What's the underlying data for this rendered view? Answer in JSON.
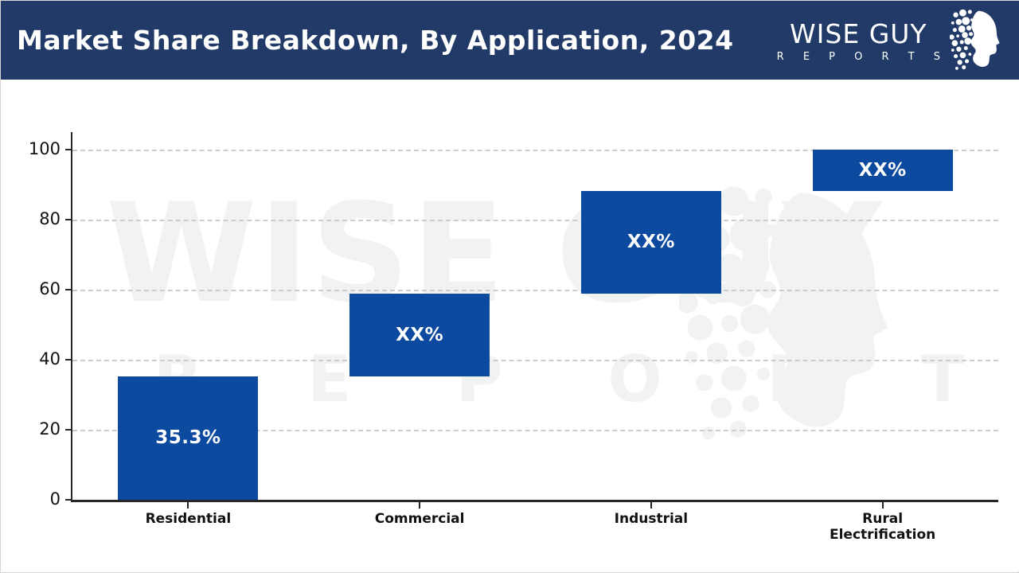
{
  "header": {
    "title": "Market Share Breakdown, By Application, 2024",
    "logo": {
      "line1": "WISE GUY",
      "line2": "R E P O R T S"
    }
  },
  "watermark": {
    "line1": "WISE GUY",
    "line2": "R E P O R T S"
  },
  "colors": {
    "header_bg": "#213a67",
    "bar_blue": "#0b4a9e",
    "bar_label": "#ffffff",
    "grid": "#cdcdcd",
    "axis": "#262626",
    "watermark": "#f1f2f4"
  },
  "chart_data": {
    "type": "bar",
    "subtype": "waterfall",
    "title": "Market Share Breakdown, By Application, 2024",
    "xlabel": "",
    "ylabel": "",
    "categories": [
      "Residential",
      "Commercial",
      "Industrial",
      "Rural Electrification"
    ],
    "segments": [
      {
        "category": "Residential",
        "start": 0,
        "end": 35.3,
        "value": 35.3,
        "label": "35.3%"
      },
      {
        "category": "Commercial",
        "start": 35.3,
        "end": 58.9,
        "value": 23.6,
        "label": "XX%"
      },
      {
        "category": "Industrial",
        "start": 58.9,
        "end": 88.2,
        "value": 29.3,
        "label": "XX%"
      },
      {
        "category": "Rural Electrification",
        "start": 88.2,
        "end": 100,
        "value": 11.8,
        "label": "XX%"
      }
    ],
    "yticks": [
      0,
      20,
      40,
      60,
      80,
      100
    ],
    "ylim": [
      0,
      105
    ],
    "grid": "horizontal-dashed",
    "legend": "none",
    "bar_color": "#0b4a9e",
    "label_color": "#ffffff"
  }
}
